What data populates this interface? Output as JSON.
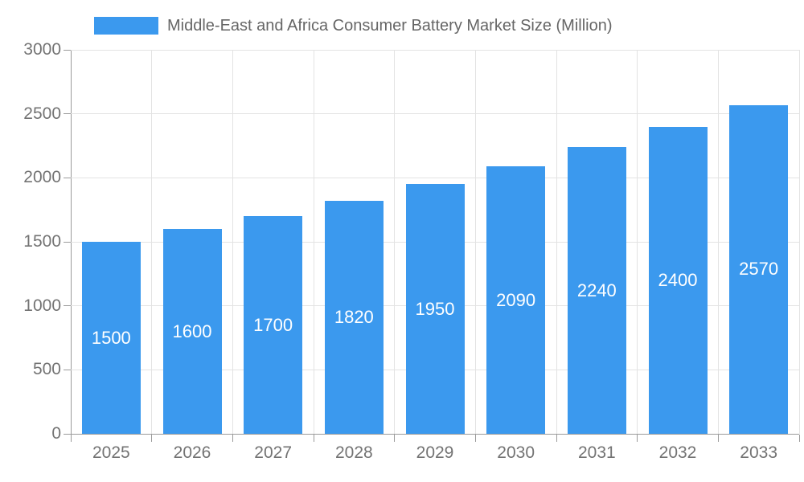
{
  "chart_data": {
    "type": "bar",
    "title": "Middle-East and Africa Consumer Battery Market Size (Million)",
    "series_name": "Middle-East and Africa Consumer Battery Market Size (Million)",
    "categories": [
      "2025",
      "2026",
      "2027",
      "2028",
      "2029",
      "2030",
      "2031",
      "2032",
      "2033"
    ],
    "values": [
      1500,
      1600,
      1700,
      1820,
      1950,
      2090,
      2240,
      2400,
      2570
    ],
    "value_labels": [
      "1500",
      "1600",
      "1700",
      "1820",
      "1950",
      "2090",
      "2240",
      "2400",
      "2570"
    ],
    "xlabel": "",
    "ylabel": "",
    "ylim": [
      0,
      3000
    ],
    "y_ticks": [
      0,
      500,
      1000,
      1500,
      2000,
      2500,
      3000
    ],
    "grid": true,
    "legend_position": "top",
    "colors": {
      "bar": "#3B99EE",
      "grid": "#e3e3e3",
      "axis": "#9b9b9b",
      "tick_label": "#737373",
      "title": "#666666",
      "value_label": "#ffffff",
      "background": "#ffffff"
    }
  }
}
